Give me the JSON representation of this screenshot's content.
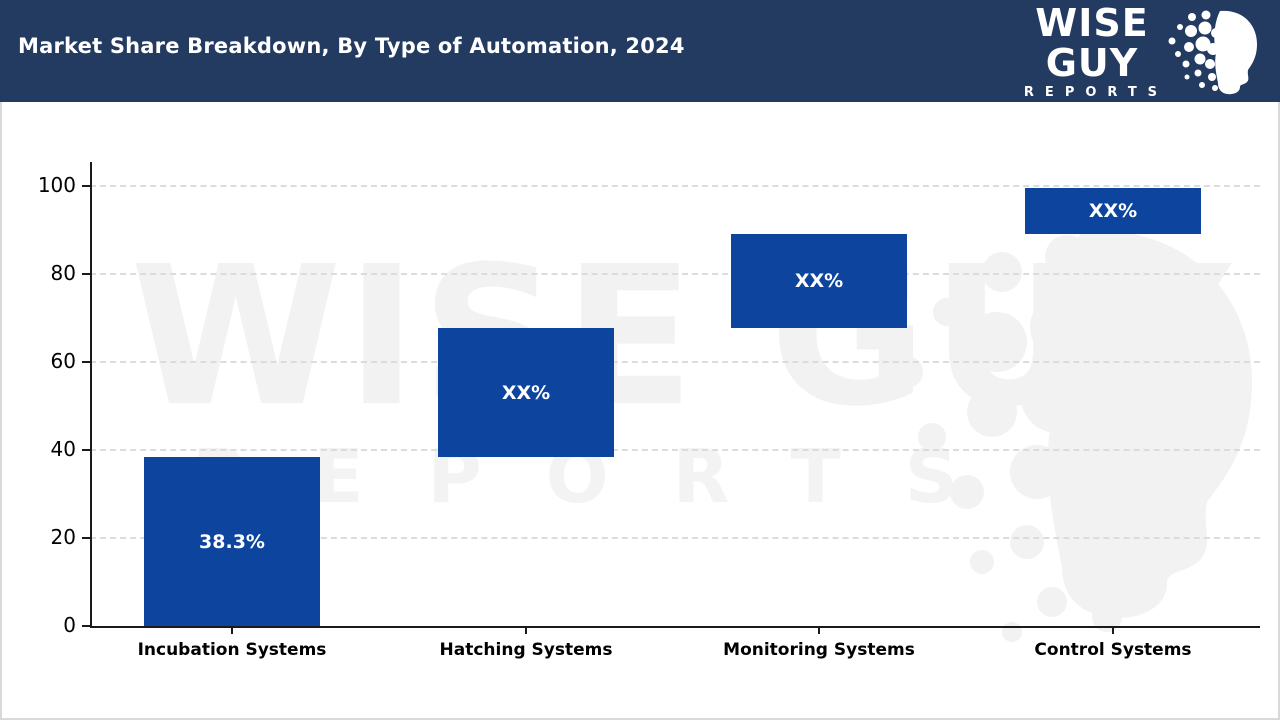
{
  "header": {
    "title": "Market Share Breakdown, By Type of Automation, 2024",
    "logo": {
      "line1": "WISE GUY",
      "line2": "REPORTS"
    }
  },
  "watermark": {
    "line1": "WISE GUY",
    "line2": "REPORTS"
  },
  "colors": {
    "header_bg": "#233a61",
    "bar": "#0d449e",
    "gridline": "#dcdcdc",
    "axis": "#1a1a1a",
    "bar_label": "#ffffff",
    "watermark": "#f2f2f2"
  },
  "chart_data": {
    "type": "bar",
    "subtype": "waterfall",
    "title": "Market Share Breakdown, By Type of Automation, 2024",
    "xlabel": "",
    "ylabel": "",
    "categories": [
      "Incubation Systems",
      "Hatching Systems",
      "Monitoring Systems",
      "Control Systems"
    ],
    "segments": [
      {
        "category": "Incubation Systems",
        "start": 0,
        "end": 38.3,
        "label": "38.3%"
      },
      {
        "category": "Hatching Systems",
        "start": 38.3,
        "end": 67.7,
        "label": "XX%"
      },
      {
        "category": "Monitoring Systems",
        "start": 67.7,
        "end": 89.1,
        "label": "XX%"
      },
      {
        "category": "Control Systems",
        "start": 89.1,
        "end": 99.5,
        "label": "XX%"
      }
    ],
    "ylim": [
      0,
      100
    ],
    "yticks": [
      0,
      20,
      40,
      60,
      80,
      100
    ],
    "grid": "horizontal-dashed",
    "legend": "none",
    "bar_color": "#0d449e"
  }
}
